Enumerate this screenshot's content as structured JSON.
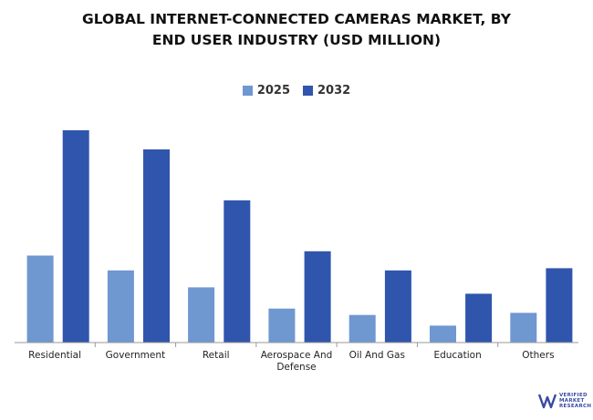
{
  "title_line1": "GLOBAL INTERNET-CONNECTED CAMERAS MARKET, BY",
  "title_line2": "END USER INDUSTRY (USD MILLION)",
  "logo": {
    "line1": "VERIFIED",
    "line2": "MARKET",
    "line3": "RESEARCH"
  },
  "colors": {
    "s2025": "#6f97d0",
    "s2032": "#2f55ad"
  },
  "chart_data": {
    "type": "bar",
    "title": "GLOBAL INTERNET-CONNECTED CAMERAS MARKET, BY END USER INDUSTRY (USD MILLION)",
    "categories": [
      "Residential",
      "Government",
      "Retail",
      "Aerospace And Defense",
      "Oil And Gas",
      "Education",
      "Others"
    ],
    "category_lines": [
      [
        "Residential"
      ],
      [
        "Government"
      ],
      [
        "Retail"
      ],
      [
        "Aerospace And",
        "Defense"
      ],
      [
        "Oil And Gas"
      ],
      [
        "Education"
      ],
      [
        "Others"
      ]
    ],
    "series": [
      {
        "name": "2025",
        "values": [
          41,
          34,
          26,
          16,
          13,
          8,
          14
        ]
      },
      {
        "name": "2032",
        "values": [
          100,
          91,
          67,
          43,
          34,
          23,
          35
        ]
      }
    ],
    "ylim": [
      0,
      100
    ],
    "legend_position": "top-center",
    "grid": false
  }
}
